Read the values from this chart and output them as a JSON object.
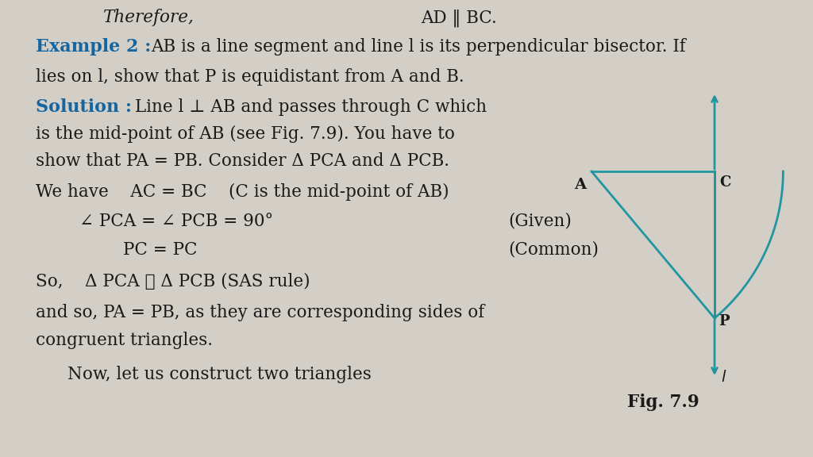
{
  "bg_color": "#d4cfc6",
  "text_color": "#1a1a1a",
  "blue_color": "#1565a0",
  "fig_blue": "#2196a0",
  "title_line": "Therefore,",
  "top_right_text": "AD ‖ BC.",
  "example_label": "Example 2 :",
  "example_text": "AB is a line segment and line l is its perpendicular bisector. If",
  "line2": "lies on l, show that P is equidistant from A and B.",
  "solution_label": "Solution :",
  "solution_text1": "Line l ⊥ AB and passes through C which",
  "solution_text2": "is the mid-point of AB (see Fig. 7.9). You have to",
  "solution_text3": "show that PA = PB. Consider Δ PCA and Δ PCB.",
  "we_have": "We have    AC = BC    (C is the mid-point of AB)",
  "eq1_left": "        ∠ PCA = ∠ PCB = 90°",
  "eq1_right": "(Given)",
  "eq2_left": "                PC = PC",
  "eq2_right": "(Common)",
  "so_line": "So,    Δ PCA ≅ Δ PCB (SAS rule)",
  "and_so1": "and so, PA = PB, as they are corresponding sides of",
  "and_so2": "congruent triangles.",
  "now": "Now, let us construct two triangles",
  "fig_label": "Fig. 7.9",
  "A": [
    0.0,
    0.0
  ],
  "C": [
    1.0,
    0.0
  ],
  "P": [
    1.0,
    1.1
  ]
}
